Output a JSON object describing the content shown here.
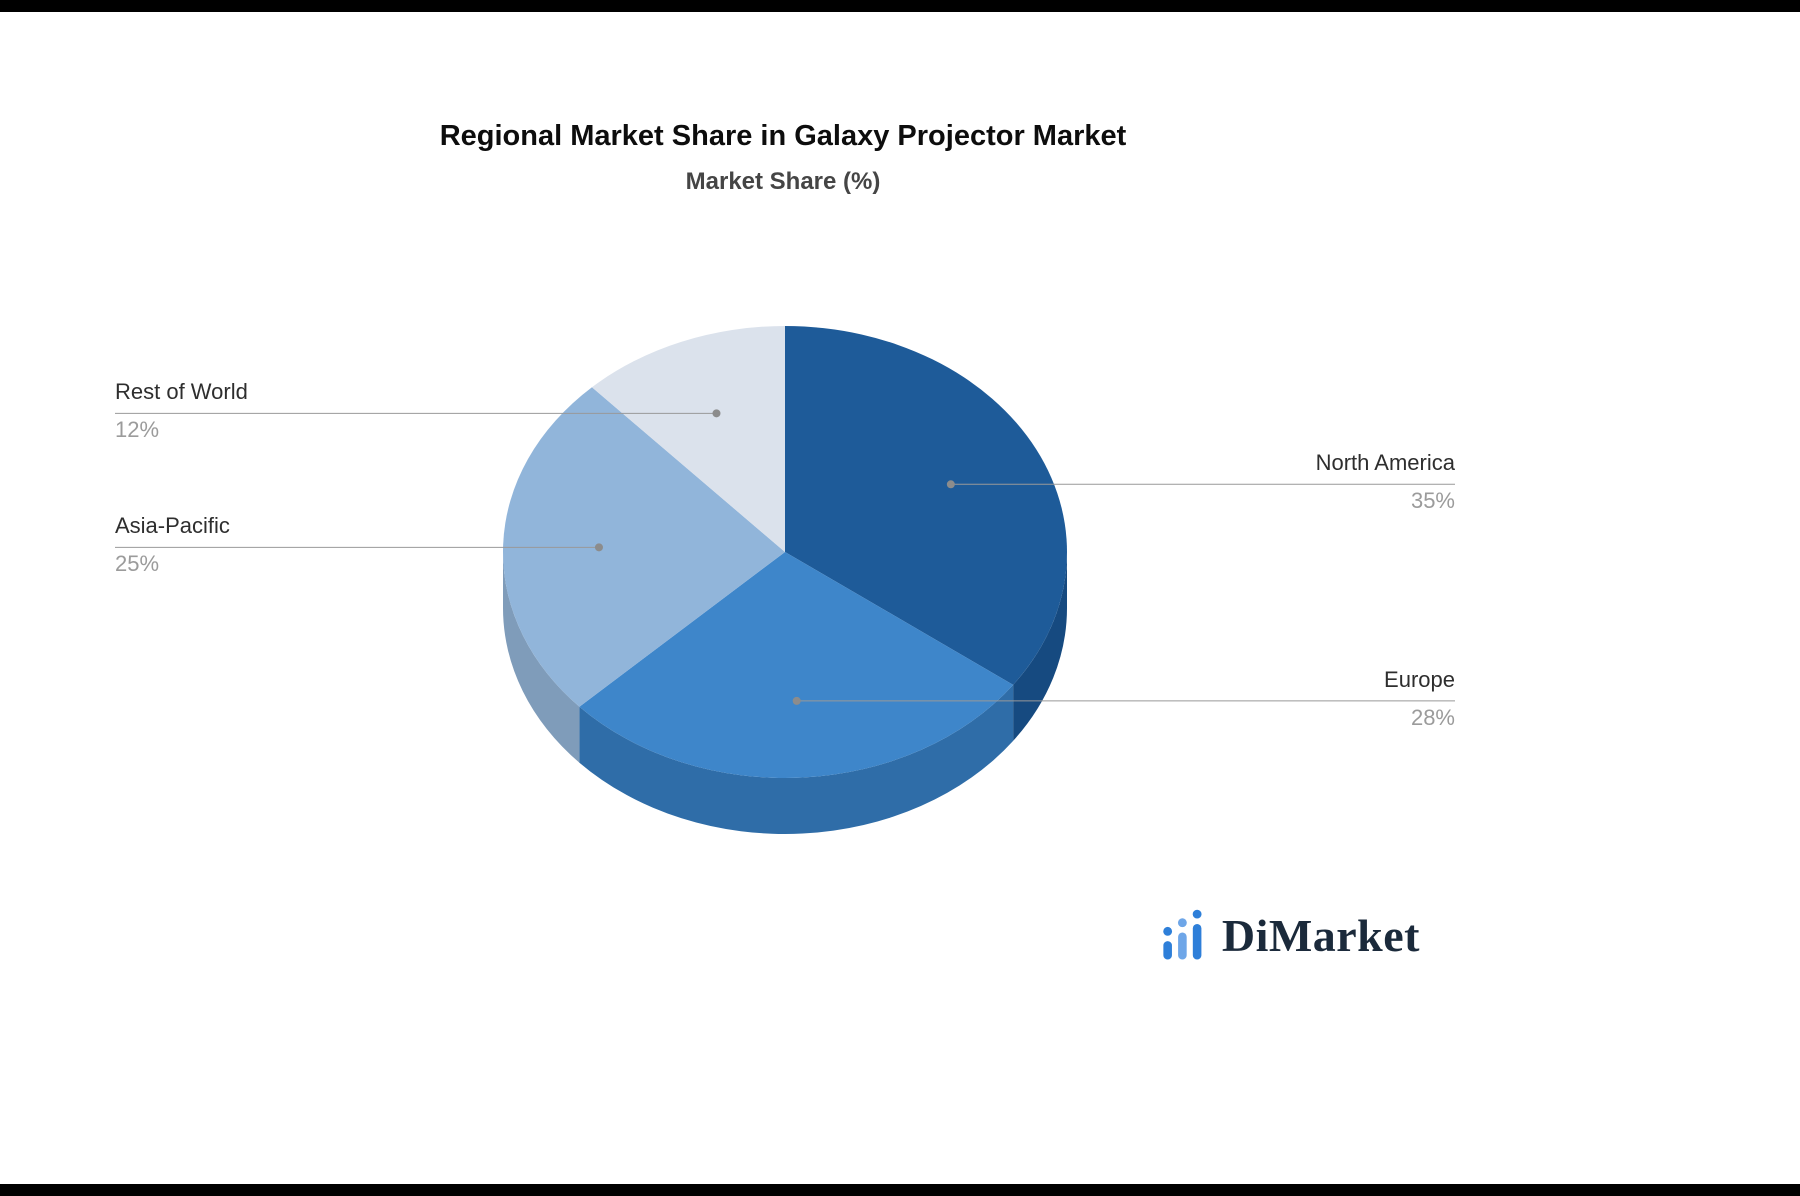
{
  "page": {
    "title": "Regional Market Share in Galaxy Projector Market",
    "subtitle": "Market Share (%)"
  },
  "brand": {
    "name": "DiMarket",
    "icon": "bar-chart-logo-icon",
    "text_color": "#1b2a3b",
    "icon_color": "#2e7fd9"
  },
  "chart_data": {
    "type": "pie",
    "style": "3d",
    "title": "Regional Market Share in Galaxy Projector Market",
    "subtitle": "Market Share (%)",
    "unit": "%",
    "direction": "clockwise",
    "start_angle_deg": 0,
    "legend_position": "callout-labels",
    "callout_line_color": "#999999",
    "slices": [
      {
        "label": "North America",
        "value": 35,
        "pct_label": "35%",
        "color": "#1e5b99",
        "side_color": "#164a80"
      },
      {
        "label": "Europe",
        "value": 28,
        "pct_label": "28%",
        "color": "#3e86ca",
        "side_color": "#2f6da8"
      },
      {
        "label": "Asia-Pacific",
        "value": 25,
        "pct_label": "25%",
        "color": "#91b5da",
        "side_color": "#7f9cba"
      },
      {
        "label": "Rest of World",
        "value": 12,
        "pct_label": "12%",
        "color": "#dbe2ec",
        "side_color": "#b9c3d2"
      }
    ]
  }
}
